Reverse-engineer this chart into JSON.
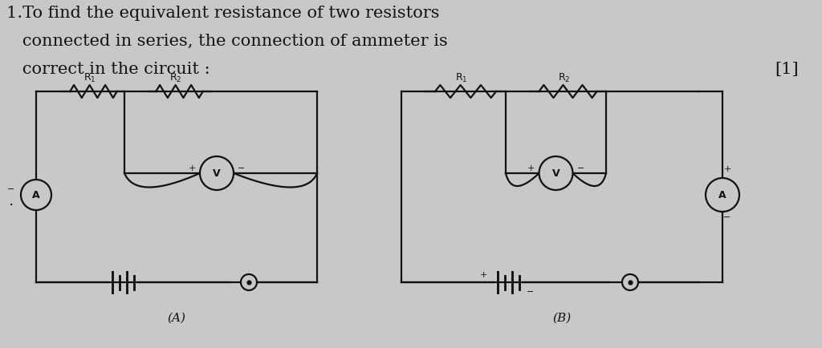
{
  "bg_color": "#c8c8c8",
  "line_color": "#111111",
  "title_line1": "1.To find the equivalent resistance of two resistors",
  "title_line2": "   connected in series, the connection of ammeter is",
  "title_line3": "   correct in the circuit :",
  "title_mark": "[1]",
  "label_A": "(A)",
  "label_B": "(B)",
  "font_size_title": 15,
  "font_size_label": 9,
  "font_size_meter": 10,
  "font_size_small": 8
}
